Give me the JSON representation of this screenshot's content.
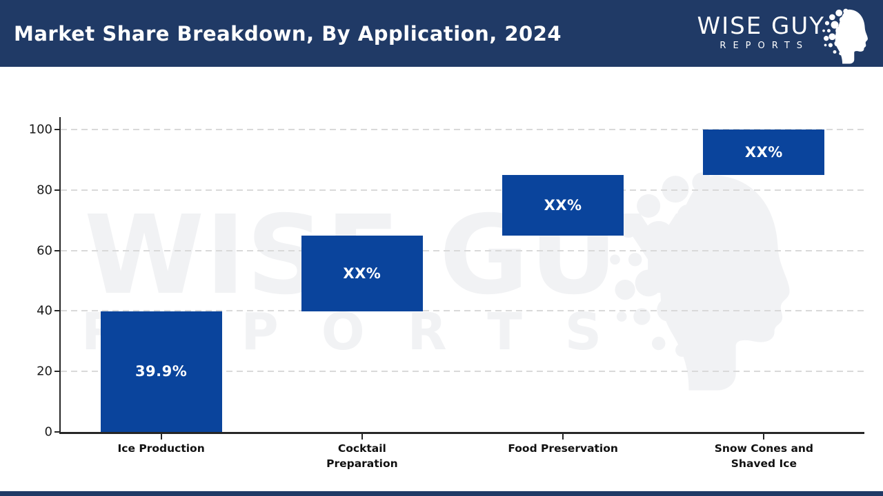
{
  "header": {
    "title": "Market Share Breakdown, By Application, 2024",
    "bg_color": "#203A66",
    "logo": {
      "line1": "WISE GUY",
      "line2": "REPORTS"
    }
  },
  "watermark": {
    "line1": "WISE GUY",
    "line2": "REPORTS",
    "color": "#F1F2F4"
  },
  "chart_data": {
    "type": "bar",
    "subtype": "waterfall",
    "title": "Market Share Breakdown, By Application, 2024",
    "categories": [
      "Ice Production",
      "Cocktail Preparation",
      "Food Preservation",
      "Snow Cones and Shaved Ice"
    ],
    "tick_labels": [
      "Ice Production",
      "Cocktail\nPreparation",
      "Food Preservation",
      "Snow Cones and\nShaved Ice"
    ],
    "segments": [
      {
        "category": "Ice Production",
        "start": 0,
        "end": 39.9,
        "label": "39.9%"
      },
      {
        "category": "Cocktail Preparation",
        "start": 39.9,
        "end": 64.9,
        "label": "XX%"
      },
      {
        "category": "Food Preservation",
        "start": 64.9,
        "end": 85,
        "label": "XX%"
      },
      {
        "category": "Snow Cones and Shaved Ice",
        "start": 85,
        "end": 100,
        "label": "XX%"
      }
    ],
    "ylim": [
      0,
      100
    ],
    "yticks": [
      0,
      20,
      40,
      60,
      80,
      100
    ],
    "grid": "horizontal-dashed",
    "legend": "none",
    "bar_color": "#0A449C",
    "bar_label_color": "#FFFFFF",
    "grid_color": "#D9D9D9",
    "axis_color": "#262626",
    "xlabel": "",
    "ylabel": ""
  }
}
